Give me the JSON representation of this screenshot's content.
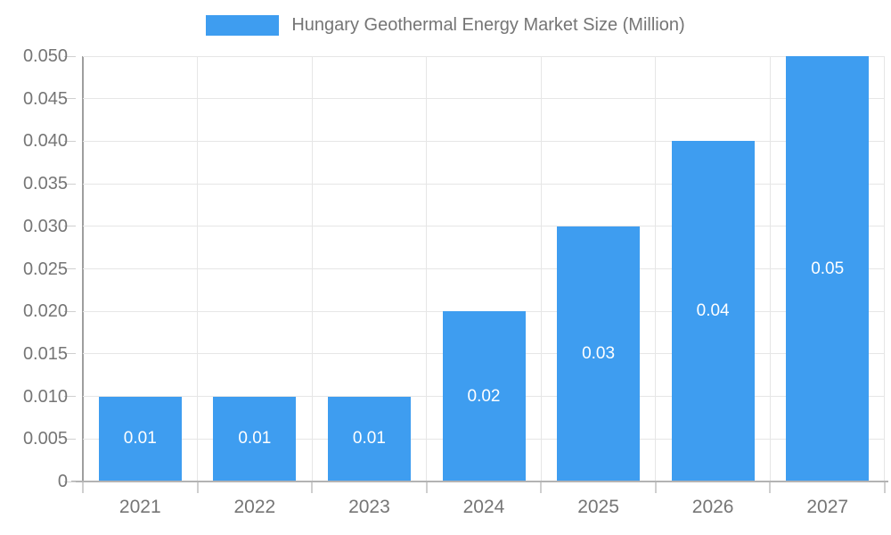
{
  "chart_data": {
    "type": "bar",
    "series_name": "Hungary Geothermal Energy Market Size (Million)",
    "categories": [
      "2021",
      "2022",
      "2023",
      "2024",
      "2025",
      "2026",
      "2027"
    ],
    "values": [
      0.01,
      0.01,
      0.01,
      0.02,
      0.03,
      0.04,
      0.05
    ],
    "bar_labels": [
      "0.01",
      "0.01",
      "0.01",
      "0.02",
      "0.03",
      "0.04",
      "0.05"
    ],
    "y_axis": {
      "min": 0,
      "max": 0.05,
      "step": 0.005,
      "tick_labels": [
        "0",
        "0.005",
        "0.010",
        "0.015",
        "0.020",
        "0.025",
        "0.030",
        "0.035",
        "0.040",
        "0.045",
        "0.050"
      ]
    },
    "legend_position": "top",
    "grid": true,
    "colors": {
      "bar": "#3E9DF0",
      "bar_label": "#ffffff",
      "axis_text": "#757575",
      "legend_text": "#757575",
      "gridline": "#e6e6e6",
      "axis_line": "#9e9e9e",
      "baseline": "#b3b3b3",
      "tick": "#cfcfcf",
      "background": "#ffffff"
    }
  }
}
